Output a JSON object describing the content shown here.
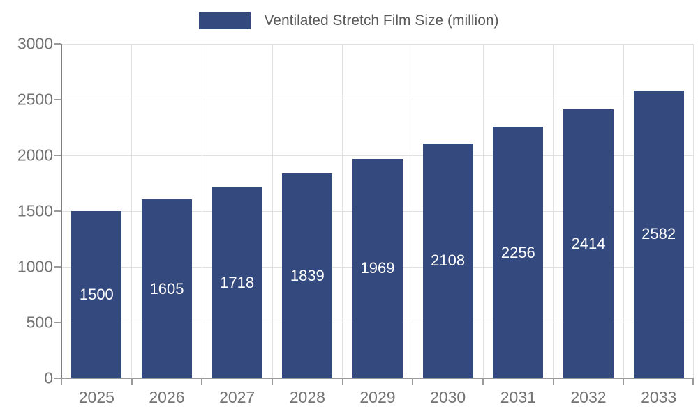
{
  "colors": {
    "bar": "#34497E",
    "grid": "#E0E0E0",
    "y_axis_line": "#7F7F7F",
    "x_axis_line": "#9A9A9A",
    "tick_mark": "#9A9A9A",
    "tick_label": "#737373",
    "legend_text": "#595959",
    "value_label": "#FFFFFF",
    "background": "#FFFFFF"
  },
  "chart_data": {
    "type": "bar",
    "title": "",
    "series_name": "Ventilated Stretch Film Size (million)",
    "categories": [
      "2025",
      "2026",
      "2027",
      "2028",
      "2029",
      "2030",
      "2031",
      "2032",
      "2033"
    ],
    "values": [
      1500,
      1605,
      1718,
      1839,
      1969,
      2108,
      2256,
      2414,
      2582
    ],
    "xlabel": "",
    "ylabel": "",
    "ylim": [
      0,
      3000
    ],
    "yticks": [
      0,
      500,
      1000,
      1500,
      2000,
      2500,
      3000
    ],
    "grid": true,
    "legend_position": "top",
    "value_label_position": "inside-center"
  }
}
